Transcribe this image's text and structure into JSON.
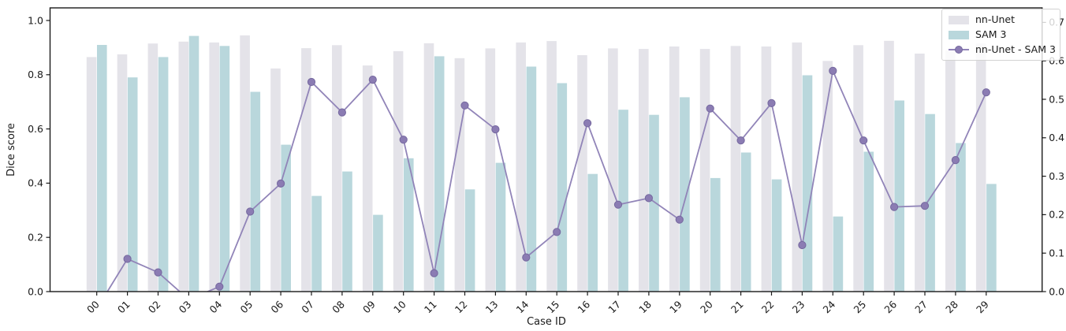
{
  "chart_data": {
    "type": "bar",
    "title": "",
    "xlabel": "Case ID",
    "ylabel": "Dice score",
    "categories": [
      "00",
      "01",
      "02",
      "03",
      "04",
      "05",
      "06",
      "07",
      "08",
      "09",
      "10",
      "11",
      "12",
      "13",
      "14",
      "15",
      "16",
      "17",
      "18",
      "19",
      "20",
      "21",
      "22",
      "23",
      "24",
      "25",
      "26",
      "27",
      "28",
      "29"
    ],
    "series": [
      {
        "name": "nn-Unet",
        "type": "bar",
        "axis": "left",
        "color": "#e4e3e9",
        "values": [
          0.865,
          0.875,
          0.915,
          0.922,
          0.919,
          0.945,
          0.823,
          0.898,
          0.909,
          0.834,
          0.887,
          0.916,
          0.861,
          0.897,
          0.919,
          0.924,
          0.872,
          0.897,
          0.895,
          0.904,
          0.895,
          0.906,
          0.904,
          0.919,
          0.851,
          0.909,
          0.925,
          0.878,
          0.89,
          0.915
        ]
      },
      {
        "name": "SAM 3",
        "type": "bar",
        "axis": "left",
        "color": "#b9d7dc",
        "values": [
          0.91,
          0.79,
          0.865,
          0.943,
          0.906,
          0.737,
          0.542,
          0.353,
          0.443,
          0.283,
          0.492,
          0.868,
          0.377,
          0.475,
          0.83,
          0.769,
          0.434,
          0.671,
          0.652,
          0.717,
          0.419,
          0.513,
          0.414,
          0.798,
          0.277,
          0.516,
          0.705,
          0.655,
          0.548,
          0.397
        ]
      },
      {
        "name": "nn-Unet - SAM 3",
        "type": "line",
        "axis": "right",
        "color": "#9184b8",
        "marker_color": "#8b7cb3",
        "marker_edge": "#75689f",
        "values": [
          -0.045,
          0.085,
          0.05,
          -0.021,
          0.013,
          0.208,
          0.281,
          0.545,
          0.466,
          0.551,
          0.395,
          0.048,
          0.484,
          0.422,
          0.089,
          0.155,
          0.438,
          0.226,
          0.243,
          0.187,
          0.476,
          0.393,
          0.49,
          0.121,
          0.574,
          0.393,
          0.22,
          0.223,
          0.342,
          0.518
        ]
      }
    ],
    "left_axis": {
      "label": "Dice score",
      "ticks": [
        "0.0",
        "0.2",
        "0.4",
        "0.6",
        "0.8",
        "1.0"
      ],
      "tick_values": [
        0,
        0.2,
        0.4,
        0.6,
        0.8,
        1.0
      ],
      "range": [
        0,
        1.047
      ]
    },
    "right_axis": {
      "label": "",
      "ticks": [
        "0.0",
        "0.1",
        "0.2",
        "0.3",
        "0.4",
        "0.5",
        "0.6",
        "0.7"
      ],
      "tick_values": [
        0,
        0.1,
        0.2,
        0.3,
        0.4,
        0.5,
        0.6,
        0.7
      ],
      "range": [
        0,
        0.738
      ]
    },
    "legend": {
      "position": "upper right",
      "entries": [
        "nn-Unet",
        "SAM 3",
        "nn-Unet - SAM 3"
      ]
    },
    "grid": false,
    "text_color": "#1a1a1a"
  }
}
